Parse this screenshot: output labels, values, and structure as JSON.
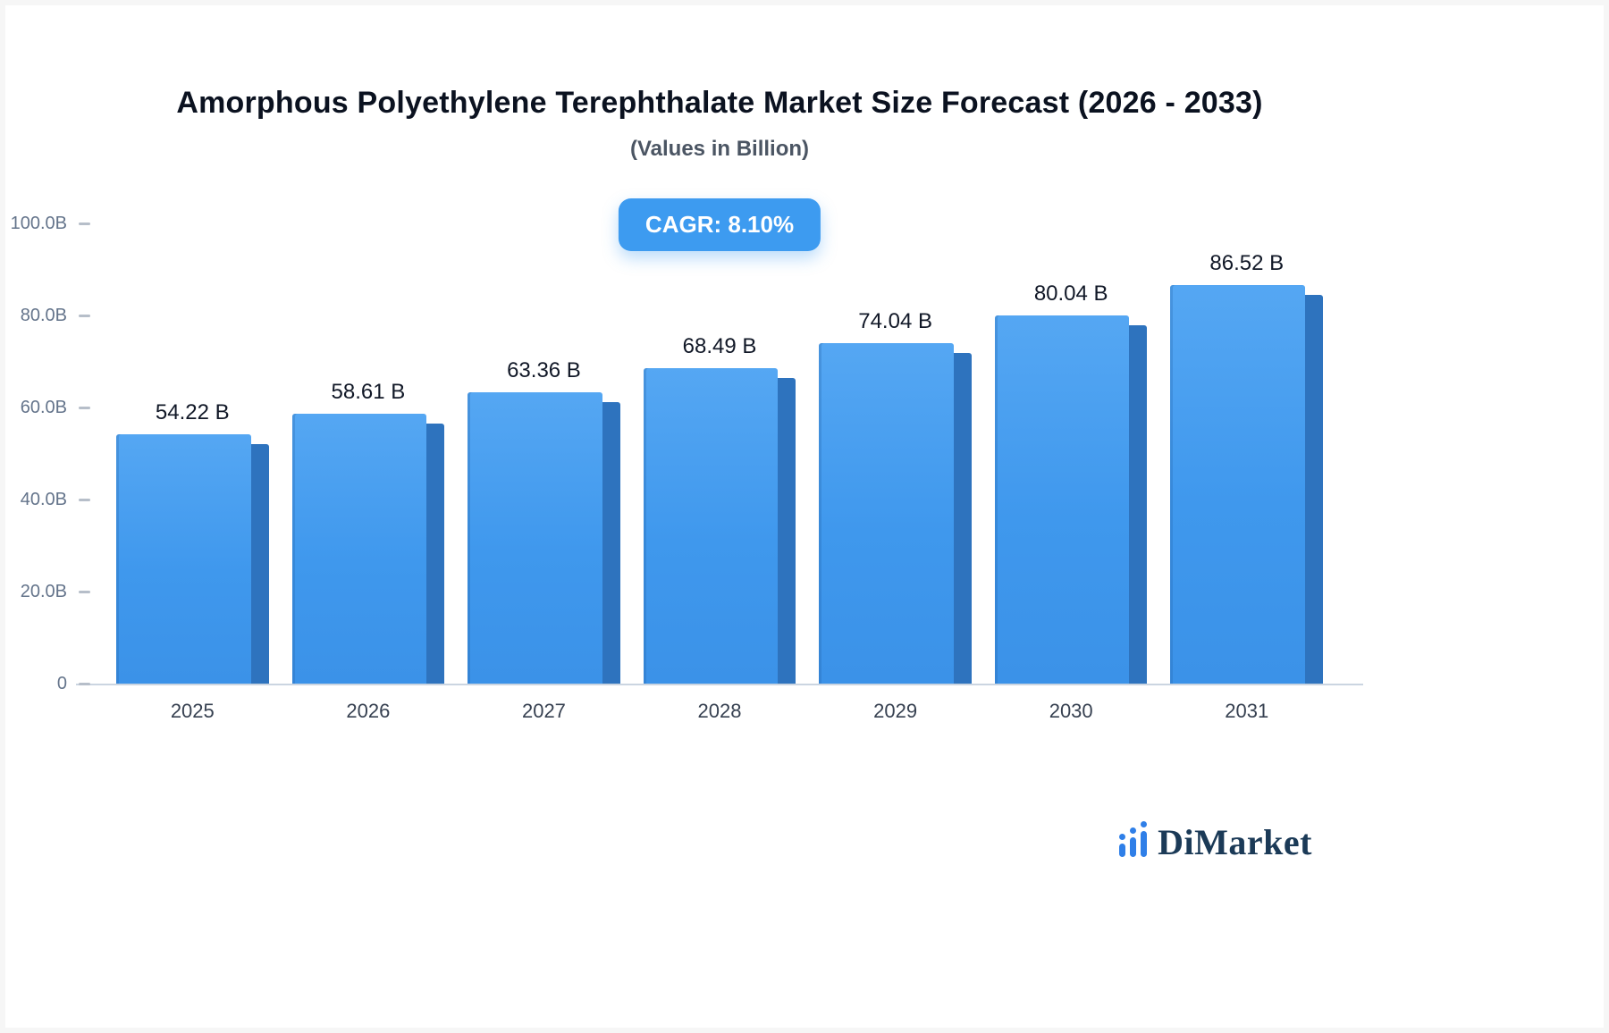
{
  "title": "Amorphous Polyethylene Terephthalate Market Size Forecast (2026 - 2033)",
  "subtitle": "(Values in Billion)",
  "badge": {
    "label": "CAGR: 8.10%"
  },
  "chart_data": {
    "type": "bar",
    "title": "Amorphous Polyethylene Terephthalate Market Size Forecast (2026 - 2033)",
    "subtitle": "(Values in Billion)",
    "cagr": "8.10%",
    "categories": [
      "2025",
      "2026",
      "2027",
      "2028",
      "2029",
      "2030",
      "2031"
    ],
    "values": [
      54.22,
      58.61,
      63.36,
      68.49,
      74.04,
      80.04,
      86.52
    ],
    "value_labels": [
      "54.22 B",
      "58.61 B",
      "63.36 B",
      "68.49 B",
      "74.04 B",
      "80.04 B",
      "86.52 B"
    ],
    "xlabel": "",
    "ylabel": "",
    "ylim": [
      0,
      100
    ],
    "yticks": [
      "100.0B",
      "80.0B",
      "60.0B",
      "40.0B",
      "20.0B",
      "0"
    ],
    "grid": false,
    "legend": null,
    "colors": {
      "bar_face": "#3d97ec",
      "bar_side": "#2e73be",
      "badge": "#3d9bf0",
      "axis_text": "#64748b",
      "value_text": "#111827"
    }
  },
  "logo": {
    "text": "DiMarket",
    "icon": "mini-bar-chart-icon"
  }
}
